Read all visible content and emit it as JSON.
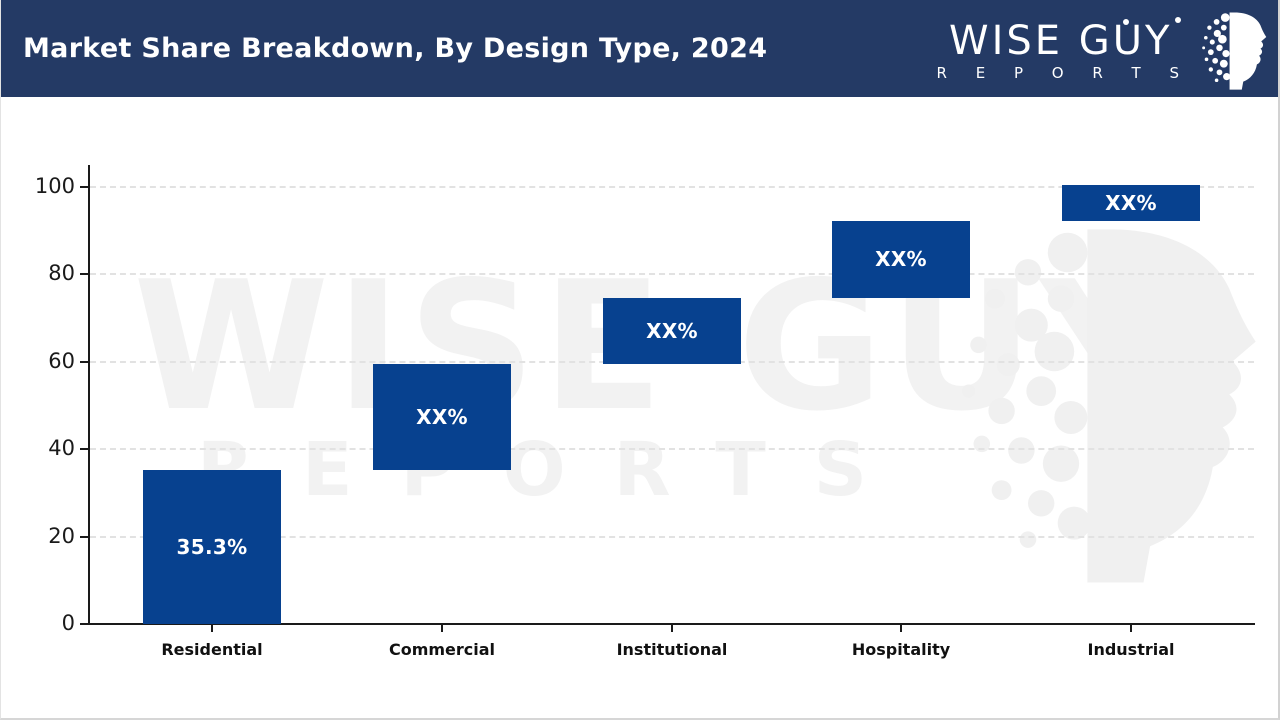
{
  "header": {
    "title": "Market Share Breakdown, By Design Type, 2024",
    "logo": {
      "line1": "WISE GUY",
      "line2": "R E P O R T S"
    }
  },
  "watermark": {
    "line1": "WISE GUY",
    "line2": "REPORTS"
  },
  "colors": {
    "header_bg": "#243a65",
    "bar": "#07418f",
    "grid": "#e2e2e2",
    "axis": "#1a1a1a",
    "bar_label": "#ffffff",
    "watermark": "#f2f2f2"
  },
  "chart_data": {
    "type": "bar",
    "subtype": "waterfall",
    "title": "Market Share Breakdown, By Design Type, 2024",
    "xlabel": "",
    "ylabel": "",
    "categories": [
      "Residential",
      "Commercial",
      "Institutional",
      "Hospitality",
      "Industrial"
    ],
    "bars": [
      {
        "category": "Residential",
        "start": 0,
        "end": 35.3,
        "value": 35.3,
        "label": "35.3%"
      },
      {
        "category": "Commercial",
        "start": 35.3,
        "end": 59.5,
        "value": 24.2,
        "label": "XX%"
      },
      {
        "category": "Institutional",
        "start": 59.5,
        "end": 74.7,
        "value": 15.2,
        "label": "XX%"
      },
      {
        "category": "Hospitality",
        "start": 74.7,
        "end": 92.3,
        "value": 17.6,
        "label": "XX%"
      },
      {
        "category": "Industrial",
        "start": 92.3,
        "end": 100.5,
        "value": 8.2,
        "label": "XX%"
      }
    ],
    "y_ticks": [
      0,
      20,
      40,
      60,
      80,
      100
    ],
    "ylim": [
      0,
      105
    ],
    "grid": "horizontal-dashed",
    "legend": "none"
  }
}
